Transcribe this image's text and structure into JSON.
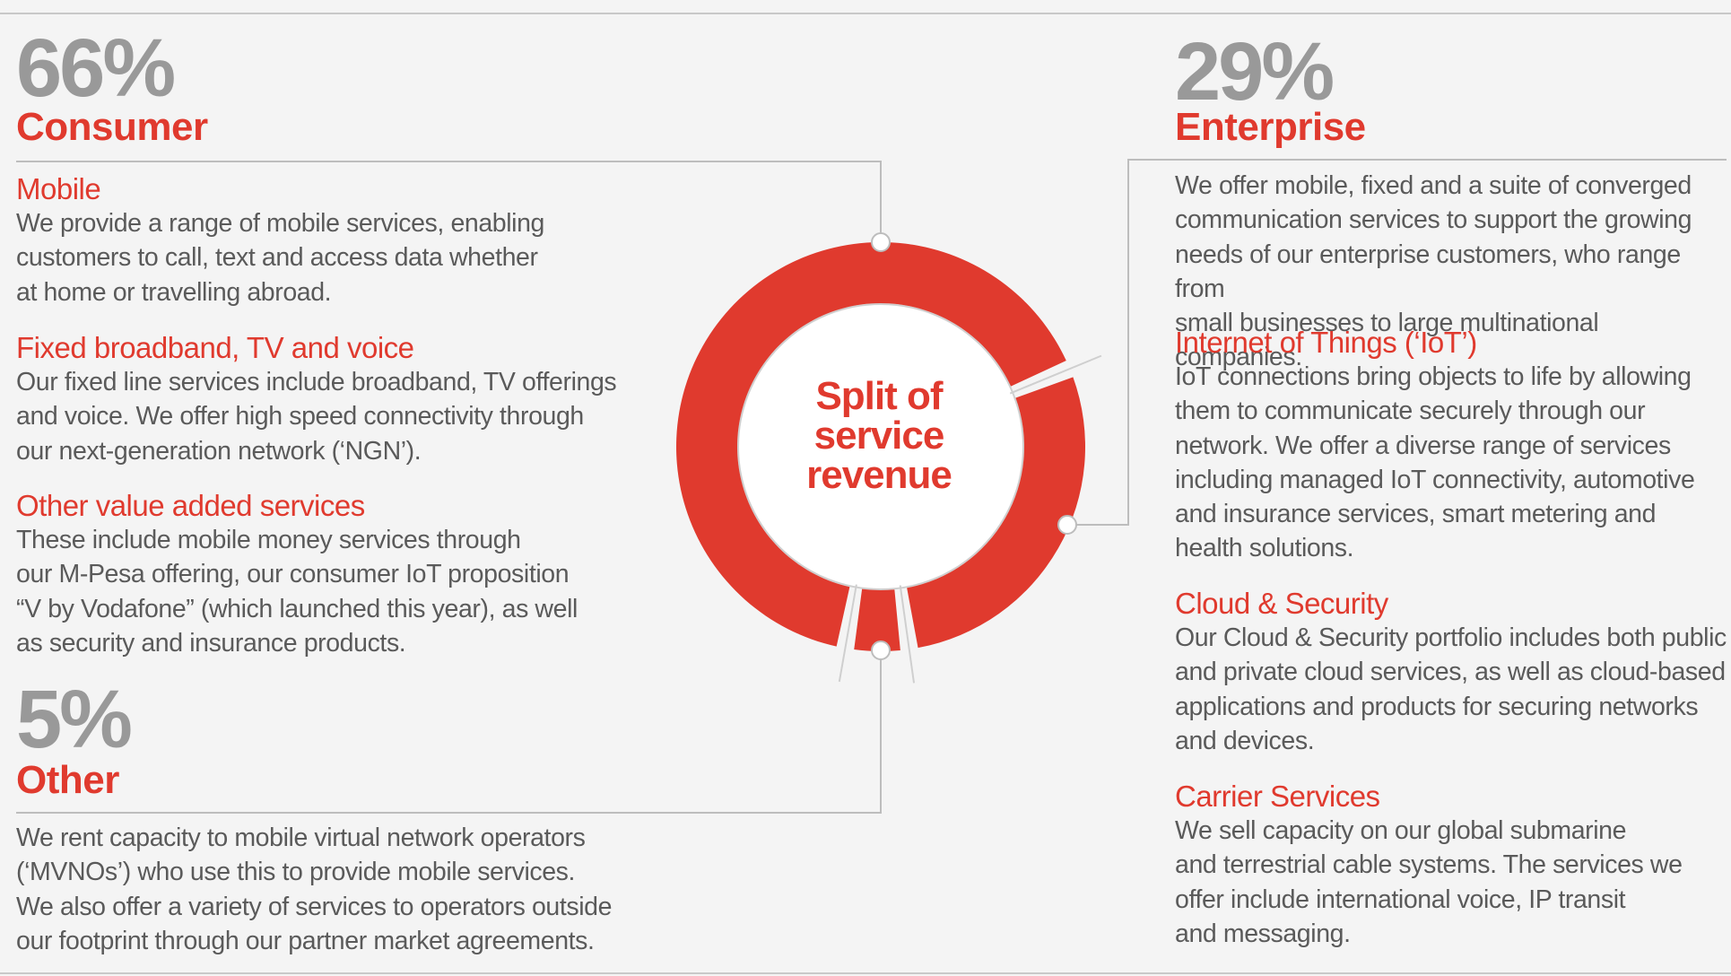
{
  "chart_data": {
    "type": "pie",
    "title": "Split of service revenue",
    "center_label_lines": [
      "Split of",
      "service",
      "revenue"
    ],
    "slices": [
      {
        "label": "Consumer",
        "value": 66,
        "display": "66%"
      },
      {
        "label": "Enterprise",
        "value": 29,
        "display": "29%"
      },
      {
        "label": "Other",
        "value": 5,
        "display": "5%"
      }
    ],
    "colors": {
      "ring": "#e03a2e",
      "muted": "#999999",
      "line": "#bdbdbd"
    }
  },
  "consumer": {
    "percent": "66%",
    "title": "Consumer",
    "items": [
      {
        "title": "Mobile",
        "lines": [
          "We provide a range of mobile services, enabling",
          "customers to call, text and access data whether",
          "at home or travelling abroad."
        ]
      },
      {
        "title": "Fixed broadband, TV and voice",
        "lines": [
          "Our fixed line services include broadband, TV offerings",
          "and voice. We offer high speed connectivity through",
          "our next-generation network (‘NGN’)."
        ]
      },
      {
        "title": "Other value added services",
        "lines": [
          "These include mobile money services through",
          "our M-Pesa offering, our consumer IoT proposition",
          "“V by Vodafone” (which launched this year), as well",
          "as security and insurance products."
        ]
      }
    ]
  },
  "other": {
    "percent": "5%",
    "title": "Other",
    "lines": [
      "We rent capacity to mobile virtual network operators",
      "(‘MVNOs’) who use this to provide mobile services.",
      "We also offer a variety of services to operators outside",
      "our footprint through our partner market agreements."
    ]
  },
  "enterprise": {
    "percent": "29%",
    "title": "Enterprise",
    "intro_lines": [
      "We offer mobile, fixed and a suite of converged",
      "communication services to support the growing",
      "needs of our enterprise customers, who range from",
      "small businesses to large multinational companies."
    ],
    "items": [
      {
        "title": "Internet of Things (‘IoT’)",
        "lines": [
          "IoT connections bring objects to life by allowing",
          "them to communicate securely through our",
          "network. We offer a diverse range of services",
          "including managed IoT connectivity, automotive",
          "and insurance services, smart metering and",
          "health solutions."
        ]
      },
      {
        "title": "Cloud & Security",
        "lines": [
          "Our Cloud & Security portfolio includes both public",
          "and private cloud services, as well as cloud-based",
          "applications and products for securing networks",
          "and devices."
        ]
      },
      {
        "title": "Carrier Services",
        "lines": [
          "We sell capacity on our global submarine",
          "and terrestrial cable systems. The services we",
          "offer include international voice, IP transit",
          "and messaging."
        ]
      }
    ]
  }
}
